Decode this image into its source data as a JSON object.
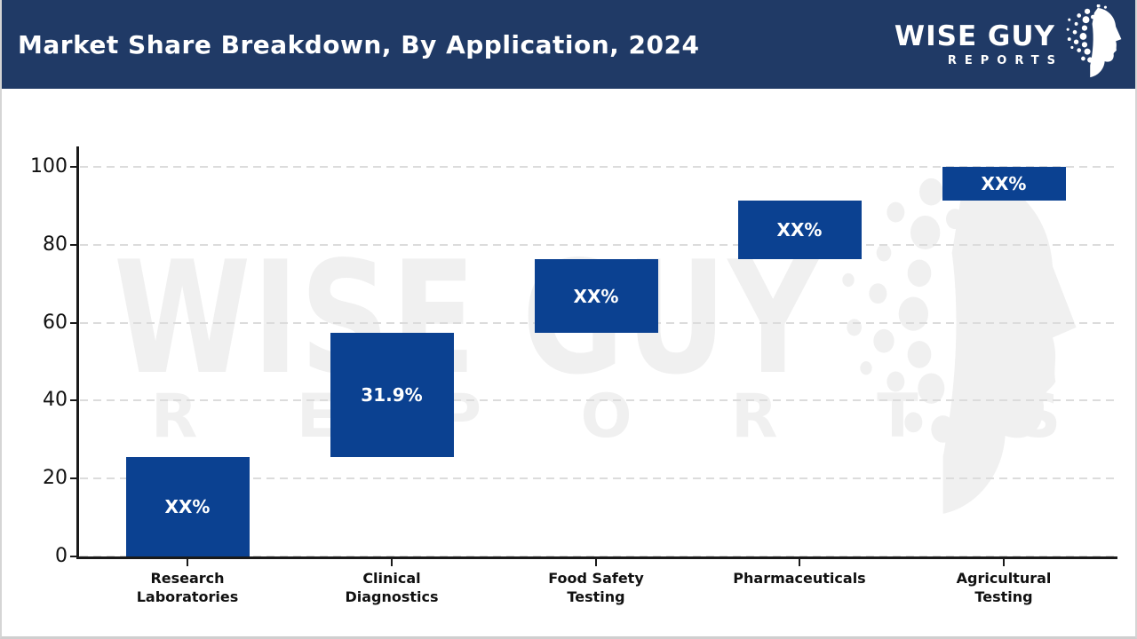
{
  "header": {
    "title": "Market Share Breakdown, By Application, 2024",
    "logo": {
      "line1": "WISE GUY",
      "line2": "REPORTS"
    }
  },
  "watermark": {
    "line1": "WISE GUY",
    "line2": "R E P O R T S"
  },
  "colors": {
    "header_navy": "#203a66",
    "bar_blue": "#0b4191",
    "bar_label_white": "#ffffff",
    "grid_gray": "#dcdcdc",
    "watermark_gray": "#f0f0f0",
    "axis_black": "#1a1a1a"
  },
  "chart_data": {
    "type": "bar",
    "subtype": "waterfall-stacked-progression",
    "title": "Market Share Breakdown, By Application, 2024",
    "xlabel": "",
    "ylabel": "",
    "ylim": [
      0,
      105
    ],
    "yticks": [
      0,
      20,
      40,
      60,
      80,
      100
    ],
    "grid": true,
    "legend": "none",
    "categories": [
      [
        "Research",
        "Laboratories"
      ],
      [
        "Clinical",
        "Diagnostics"
      ],
      [
        "Food Safety",
        "Testing"
      ],
      [
        "Pharmaceuticals"
      ],
      [
        "Agricultural",
        "Testing"
      ]
    ],
    "segments": [
      {
        "start": 0,
        "end": 25.5,
        "value": 25.5,
        "label": "XX%"
      },
      {
        "start": 25.5,
        "end": 57.4,
        "value": 31.9,
        "label": "31.9%"
      },
      {
        "start": 57.4,
        "end": 76.3,
        "value": 18.9,
        "label": "XX%"
      },
      {
        "start": 76.3,
        "end": 91.4,
        "value": 15.1,
        "label": "XX%"
      },
      {
        "start": 91.4,
        "end": 100,
        "value": 8.6,
        "label": "XX%"
      }
    ]
  }
}
